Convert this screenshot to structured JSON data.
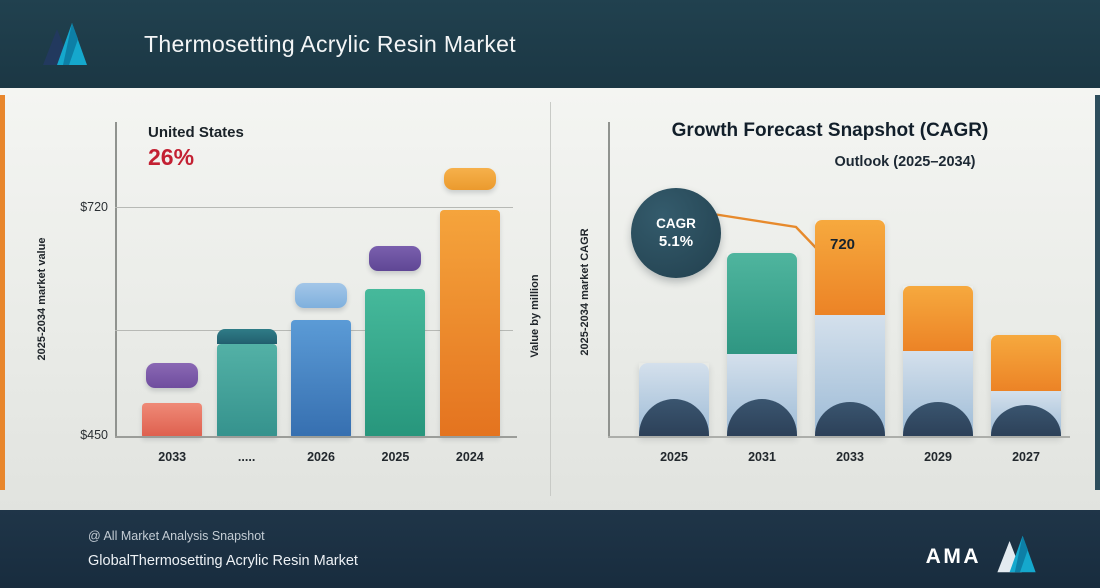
{
  "header": {
    "title": "Thermosetting Acrylic Resin Market",
    "brand": "AMA"
  },
  "divider": {
    "label": "Value by million"
  },
  "footer": {
    "note": "@ All Market Analysis Snapshot",
    "title": "GlobalThermosetting Acrylic Resin Market",
    "brand": "AMA"
  },
  "colors": {
    "accent_orange": "#e8862c",
    "header_bg": "#1e3b49",
    "footer_bg": "#1d3145",
    "highlight_red": "#c32032",
    "band_bg": "#ebede9"
  },
  "chart_data": [
    {
      "type": "bar",
      "title": "United States",
      "annotation": "26%",
      "ylabel": "2025-2034 market value",
      "ylabel_secondary": "Value by million",
      "ylim": [
        450,
        760
      ],
      "yticks": [
        {
          "label": "$450",
          "value": 450
        },
        {
          "label": "$720",
          "value": 720
        }
      ],
      "gridlines": [
        575,
        720
      ],
      "bars": [
        {
          "category": "2033",
          "value": 490,
          "color": "#de5f4e",
          "color_top": "#ef8a77",
          "cap_color": "#6f4d9e",
          "cap_color_top": "#8a68b4",
          "cap_h": 25,
          "cap_gap": 15
        },
        {
          "category": ".....",
          "value": 560,
          "color": "#35928d",
          "color_top": "#53b1a6",
          "cap_color": "#225f6f",
          "cap_color_top": "#2f7c87",
          "cap_h": 15,
          "cap_gap": 0
        },
        {
          "category": "2026",
          "value": 588,
          "color": "#366fb0",
          "color_top": "#5b9bd6",
          "cap_color": "#7fb0dd",
          "cap_color_top": "#a3c6e8",
          "cap_h": 25,
          "cap_gap": 12
        },
        {
          "category": "2025",
          "value": 625,
          "color": "#27967c",
          "color_top": "#46b99b",
          "cap_color": "#5f4795",
          "cap_color_top": "#7a5fae",
          "cap_h": 25,
          "cap_gap": 18
        },
        {
          "category": "2024",
          "value": 718,
          "color": "#e4731f",
          "color_top": "#f5a43c",
          "cap_color": "#eb9a2e",
          "cap_color_top": "#f6b14b",
          "cap_h": 22,
          "cap_gap": 20
        }
      ]
    },
    {
      "type": "stacked-bar",
      "title": "Growth Forecast Snapshot (CAGR)",
      "subtitle": "Outlook (2025–2034)",
      "ylabel": "2025-2034 market CAGR",
      "cagr_label": "CAGR",
      "cagr_value": "5.1%",
      "ymax": 720,
      "annotation": {
        "category": "2033",
        "label": "720"
      },
      "bars": [
        {
          "category": "2025",
          "total": 245,
          "segments": [
            {
              "name": "base",
              "value": 125,
              "color": "#2c4058",
              "color_top": "#3a556f"
            },
            {
              "name": "mid",
              "value": 120,
              "color": "#9dbbd6",
              "color_top": "#d4e0ec"
            }
          ]
        },
        {
          "category": "2031",
          "total": 610,
          "segments": [
            {
              "name": "base",
              "value": 125,
              "color": "#2c4058",
              "color_top": "#3a556f"
            },
            {
              "name": "mid",
              "value": 150,
              "color": "#9dbbd6",
              "color_top": "#d4e0ec"
            },
            {
              "name": "top",
              "value": 335,
              "color": "#2f9682",
              "color_top": "#4fb59e"
            }
          ]
        },
        {
          "category": "2033",
          "total": 720,
          "segments": [
            {
              "name": "base",
              "value": 115,
              "color": "#2c4058",
              "color_top": "#3a556f"
            },
            {
              "name": "mid",
              "value": 290,
              "color": "#9dbbd6",
              "color_top": "#d4e0ec"
            },
            {
              "name": "top",
              "value": 315,
              "color": "#ec8326",
              "color_top": "#f6a93e"
            }
          ]
        },
        {
          "category": "2029",
          "total": 500,
          "segments": [
            {
              "name": "base",
              "value": 115,
              "color": "#2c4058",
              "color_top": "#3a556f"
            },
            {
              "name": "mid",
              "value": 170,
              "color": "#9dbbd6",
              "color_top": "#d4e0ec"
            },
            {
              "name": "top",
              "value": 215,
              "color": "#ec8326",
              "color_top": "#f6a93e"
            }
          ]
        },
        {
          "category": "2027",
          "total": 340,
          "segments": [
            {
              "name": "base",
              "value": 105,
              "color": "#2c4058",
              "color_top": "#3a556f"
            },
            {
              "name": "mid",
              "value": 50,
              "color": "#9dbbd6",
              "color_top": "#d4e0ec"
            },
            {
              "name": "top",
              "value": 185,
              "color": "#ec8326",
              "color_top": "#f6a93e"
            }
          ]
        }
      ]
    }
  ]
}
